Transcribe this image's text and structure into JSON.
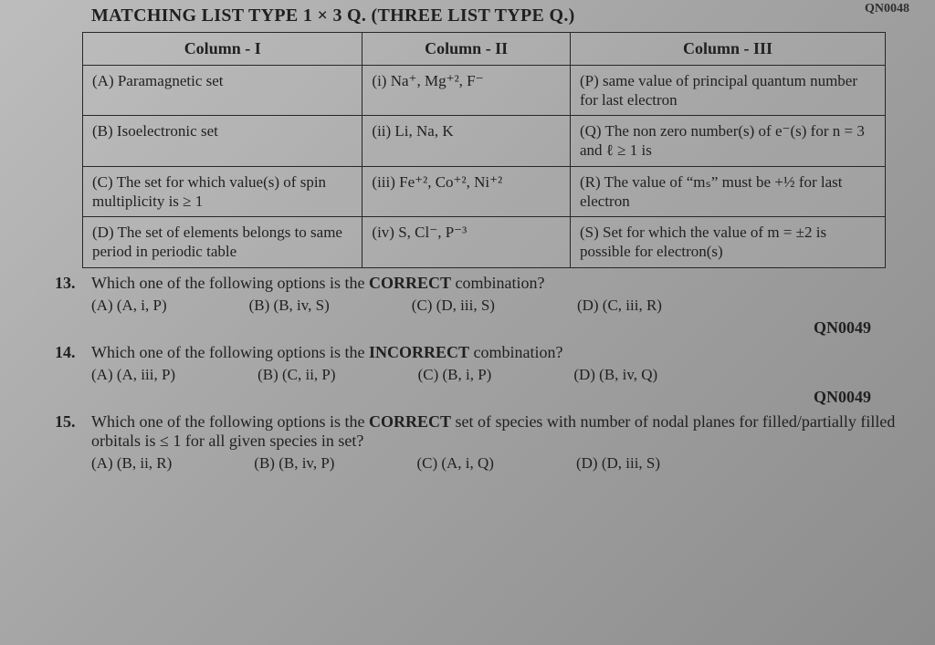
{
  "topcode": "QN0048",
  "heading": "MATCHING LIST TYPE 1 × 3 Q. (THREE LIST TYPE Q.)",
  "table": {
    "headers": {
      "c1": "Column - I",
      "c2": "Column - II",
      "c3": "Column - III"
    },
    "rows": [
      {
        "c1": "(A) Paramagnetic set",
        "c2": "(i)  Na⁺, Mg⁺², F⁻",
        "c3": "(P) same value of principal quantum number for last electron"
      },
      {
        "c1": "(B) Isoelectronic set",
        "c2": "(ii) Li, Na, K",
        "c3": "(Q) The non zero number(s) of e⁻(s) for n = 3 and ℓ ≥ 1 is"
      },
      {
        "c1": "(C) The set for which value(s) of spin multiplicity is ≥ 1",
        "c2": "(iii) Fe⁺², Co⁺², Ni⁺²",
        "c3": "(R) The value of “mₛ” must be +½ for last electron"
      },
      {
        "c1": "(D) The set of elements belongs to same period in periodic table",
        "c2": "(iv) S, Cl⁻, P⁻³",
        "c3": "(S) Set for which the value of m = ±2 is possible for electron(s)"
      }
    ]
  },
  "q13": {
    "num": "13.",
    "stem_pre": "Which one of the following options is the ",
    "stem_bold": "CORRECT",
    "stem_post": " combination?",
    "a": "(A) (A, i, P)",
    "b": "(B) (B, iv, S)",
    "c": "(C) (D, iii, S)",
    "d": "(D) (C, iii, R)",
    "code": "QN0049"
  },
  "q14": {
    "num": "14.",
    "stem_pre": "Which one of the following options is the ",
    "stem_bold": "INCORRECT",
    "stem_post": " combination?",
    "a": "(A) (A, iii, P)",
    "b": "(B) (C, ii, P)",
    "c": "(C) (B, i, P)",
    "d": "(D) (B, iv, Q)",
    "code": "QN0049"
  },
  "q15": {
    "num": "15.",
    "stem_pre": "Which one of the following options is the ",
    "stem_bold": "CORRECT",
    "stem_post": " set of species with number of nodal planes for filled/partially filled orbitals is ≤ 1 for all given species in set?",
    "a": "(A) (B, ii, R)",
    "b": "(B) (B, iv, P)",
    "c": "(C) (A, i, Q)",
    "d": "(D) (D, iii, S)"
  }
}
